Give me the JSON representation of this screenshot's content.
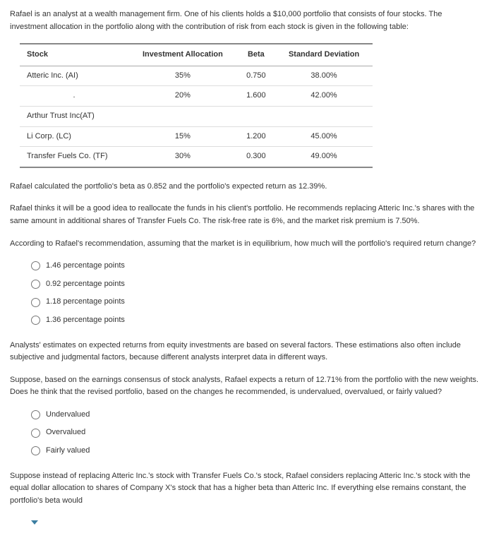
{
  "intro": {
    "p1": "Rafael is an analyst at a wealth management firm. One of his clients holds a $10,000 portfolio that consists of four stocks. The investment allocation in the portfolio along with the contribution of risk from each stock is given in the following table:"
  },
  "table": {
    "headers": {
      "stock": "Stock",
      "alloc": "Investment Allocation",
      "beta": "Beta",
      "sd": "Standard Deviation"
    },
    "rows": {
      "r0": {
        "stock": "Atteric Inc. (AI)",
        "alloc": "35%",
        "beta": "0.750",
        "sd": "38.00%"
      },
      "r1": {
        "stock": ".",
        "alloc": "20%",
        "beta": "1.600",
        "sd": "42.00%"
      },
      "r2": {
        "stock": "Arthur Trust Inc(AT)",
        "alloc": "",
        "beta": "",
        "sd": ""
      },
      "r3": {
        "stock": "Li Corp. (LC)",
        "alloc": "15%",
        "beta": "1.200",
        "sd": "45.00%"
      },
      "r4": {
        "stock": "Transfer Fuels Co. (TF)",
        "alloc": "30%",
        "beta": "0.300",
        "sd": "49.00%"
      }
    }
  },
  "mid": {
    "p2": "Rafael calculated the portfolio's beta as 0.852 and the portfolio's expected return as 12.39%.",
    "p3": "Rafael thinks it will be a good idea to reallocate the funds in his client's portfolio. He recommends replacing Atteric Inc.'s shares with the same amount in additional shares of Transfer Fuels Co. The risk-free rate is 6%, and the market risk premium is 7.50%.",
    "q1": "According to Rafael's recommendation, assuming that the market is in equilibrium, how much will the portfolio's required return change?"
  },
  "options1": {
    "a": "1.46 percentage points",
    "b": "0.92 percentage points",
    "c": "1.18 percentage points",
    "d": "1.36 percentage points"
  },
  "mid2": {
    "p4": "Analysts' estimates on expected returns from equity investments are based on several factors. These estimations also often include subjective and judgmental factors, because different analysts interpret data in different ways.",
    "q2": "Suppose, based on the earnings consensus of stock analysts, Rafael expects a return of 12.71% from the portfolio with the new weights. Does he think that the revised portfolio, based on the changes he recommended, is undervalued, overvalued, or fairly valued?"
  },
  "options2": {
    "a": "Undervalued",
    "b": "Overvalued",
    "c": "Fairly valued"
  },
  "end": {
    "p5": "Suppose instead of replacing Atteric Inc.'s stock with Transfer Fuels Co.'s stock, Rafael considers replacing Atteric Inc.'s stock with the equal dollar allocation to shares of Company X's stock that has a higher beta than Atteric Inc. If everything else remains constant, the portfolio's beta would"
  }
}
